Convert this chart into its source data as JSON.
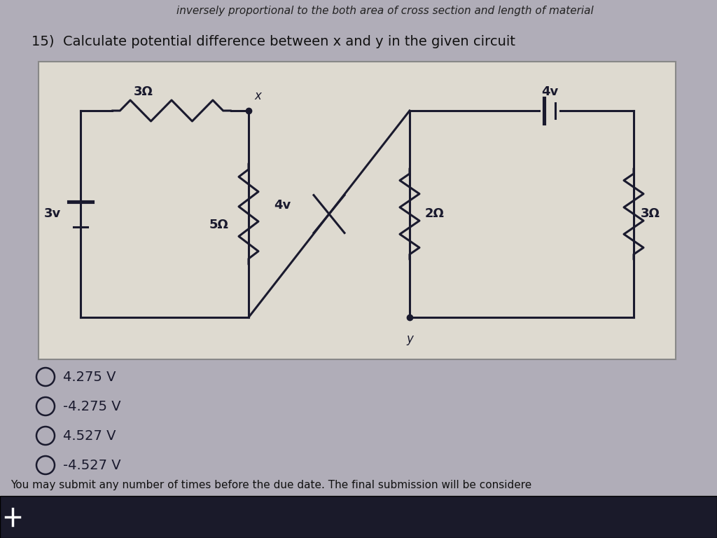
{
  "page_bg": "#b0adb8",
  "circuit_bg": "#dedad0",
  "line_color": "#1a1a2e",
  "line_width": 2.2,
  "title_text": "15)  Calculate potential difference between x and y in the given circuit",
  "top_text": "inversely proportional to the both area of cross section and length of material",
  "bottom_text": "You may submit any number of times before the due date. The final submission will be considere",
  "choices": [
    "4.275 V",
    "-4.275 V",
    "4.527 V",
    "-4.527 V"
  ],
  "font_size_title": 14,
  "font_size_labels": 13,
  "font_size_choices": 14,
  "font_size_top": 11
}
